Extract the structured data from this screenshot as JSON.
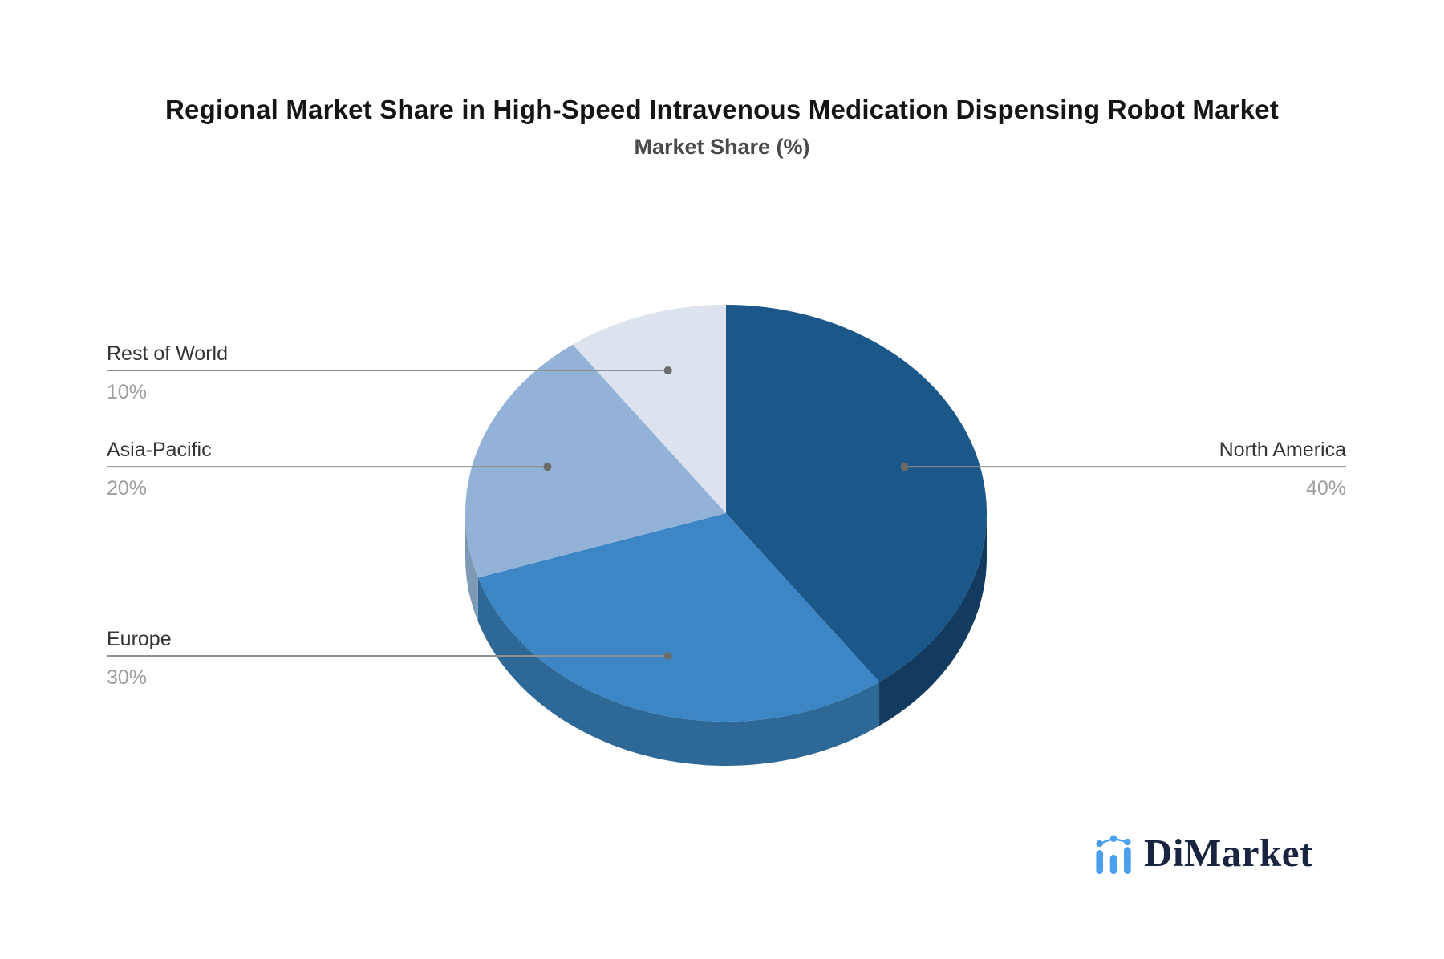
{
  "chart_data": {
    "type": "pie",
    "style": "3d",
    "title": "Regional Market Share in High-Speed Intravenous Medication Dispensing Robot Market",
    "subtitle": "Market Share (%)",
    "unit": "%",
    "categories": [
      "North America",
      "Europe",
      "Asia-Pacific",
      "Rest of World"
    ],
    "values": [
      40,
      30,
      20,
      10
    ],
    "value_labels": [
      "40%",
      "30%",
      "20%",
      "10%"
    ],
    "start_angle": "top",
    "direction": "clockwise",
    "legend": "none",
    "label_layout": "outside-with-leader-lines",
    "colors": {
      "slices": [
        "#1B5788",
        "#3C86C6",
        "#92B3D7",
        "#DCE3EE"
      ],
      "sides": [
        "#133B5F",
        "#2E6896",
        "#7E99B6",
        "#C5CEDC"
      ]
    }
  },
  "colors": {
    "background": "#ffffff",
    "title_text": "#151515",
    "subtitle_text": "#4a4a4a",
    "category_label_text": "#333333",
    "value_label_text": "#9e9e9e",
    "leader_line": "#8f8f8f",
    "leader_dot": "#6b6b6b",
    "logo_blue": "#4A9FF0",
    "logo_navy": "#182440"
  },
  "logo": {
    "text": "DiMarket",
    "icon": "bar-chart-sparkline-icon"
  }
}
